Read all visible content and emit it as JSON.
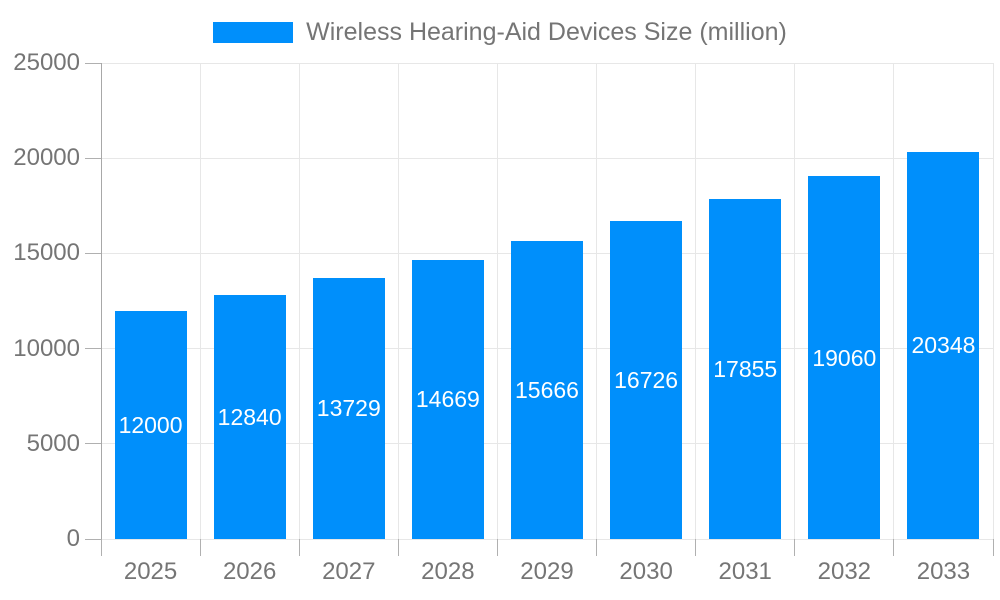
{
  "chart_data": {
    "type": "bar",
    "title": "Wireless Hearing-Aid Devices Size (million)",
    "categories": [
      "2025",
      "2026",
      "2027",
      "2028",
      "2029",
      "2030",
      "2031",
      "2032",
      "2033"
    ],
    "series": [
      {
        "name": "Wireless Hearing-Aid Devices Size (million)",
        "values": [
          12000,
          12840,
          13729,
          14669,
          15666,
          16726,
          17855,
          19060,
          20348
        ]
      }
    ],
    "data_labels": [
      "12000",
      "12840",
      "13729",
      "14669",
      "15666",
      "16726",
      "17855",
      "19060",
      "20348"
    ],
    "xlabel": "",
    "ylabel": "",
    "ylim": [
      0,
      25000
    ],
    "ytick_step": 5000,
    "ytick_labels": [
      "0",
      "5000",
      "10000",
      "15000",
      "20000",
      "25000"
    ],
    "grid": true,
    "legend_position": "top",
    "colors": {
      "bar": "#008FFB",
      "data_label": "#ffffff",
      "axis_text": "#757575",
      "gridline": "#e7e7e7",
      "axis_line": "#a8a8a8",
      "tick": "#b0b0b0",
      "background": "#ffffff"
    }
  },
  "legend": {
    "label": "Wireless Hearing-Aid Devices Size (million)",
    "swatch_color": "#008FFB"
  }
}
